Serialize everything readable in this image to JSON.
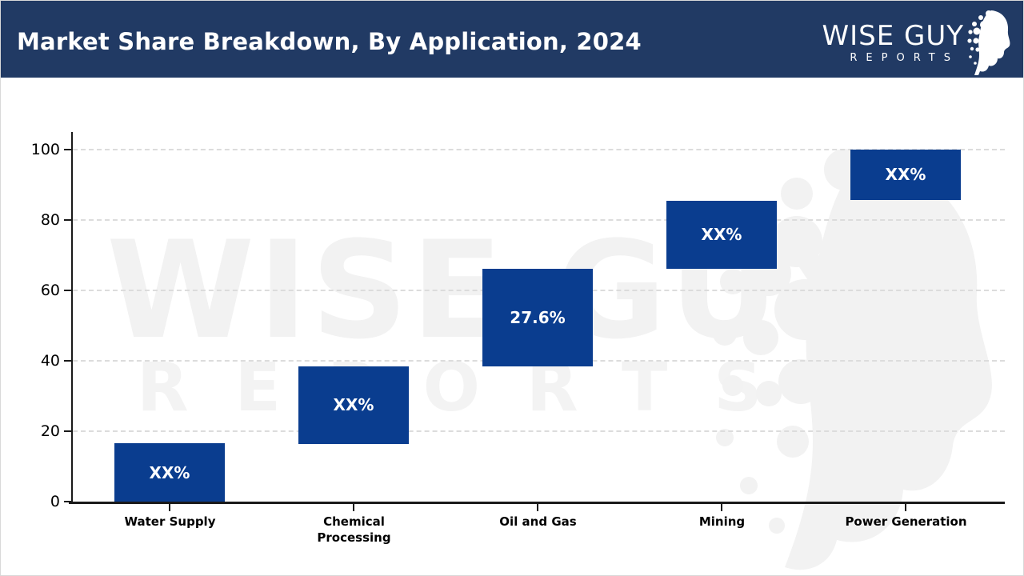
{
  "header": {
    "title": "Market Share Breakdown, By Application, 2024",
    "logo": {
      "line1": "WISE GUY",
      "line2": "REPORTS"
    }
  },
  "watermark": {
    "line1": "WISE GUY",
    "line2": "REPORTS"
  },
  "colors": {
    "header_bg": "#213a64",
    "bar": "#0a3d8f",
    "bar_label": "#ffffff",
    "gridline": "#dcdcdc",
    "axis": "#1a1a1a",
    "watermark": "#f2f2f2"
  },
  "chart_data": {
    "type": "bar",
    "subtype": "floating-waterfall",
    "title": "Market Share Breakdown, By Application, 2024",
    "categories": [
      "Water Supply",
      "Chemical Processing",
      "Oil and Gas",
      "Mining",
      "Power Generation"
    ],
    "xtick_labels": [
      "Water Supply",
      "Chemical\nProcessing",
      "Oil and Gas",
      "Mining",
      "Power Generation"
    ],
    "series": [
      {
        "name": "Market Share (%)",
        "segments": [
          {
            "category": "Water Supply",
            "start": 0,
            "end": 16.5,
            "label": "XX%"
          },
          {
            "category": "Chemical Processing",
            "start": 16.4,
            "end": 38.4,
            "label": "XX%"
          },
          {
            "category": "Oil and Gas",
            "start": 38.5,
            "end": 66.1,
            "label": "27.6%"
          },
          {
            "category": "Mining",
            "start": 66.1,
            "end": 85.5,
            "label": "XX%"
          },
          {
            "category": "Power Generation",
            "start": 85.7,
            "end": 100,
            "label": "XX%"
          }
        ]
      }
    ],
    "ylim": [
      0,
      104
    ],
    "yticks": [
      0,
      20,
      40,
      60,
      80,
      100
    ],
    "xlabel": "",
    "ylabel": "",
    "grid": "horizontal-dashed",
    "legend": "none"
  }
}
